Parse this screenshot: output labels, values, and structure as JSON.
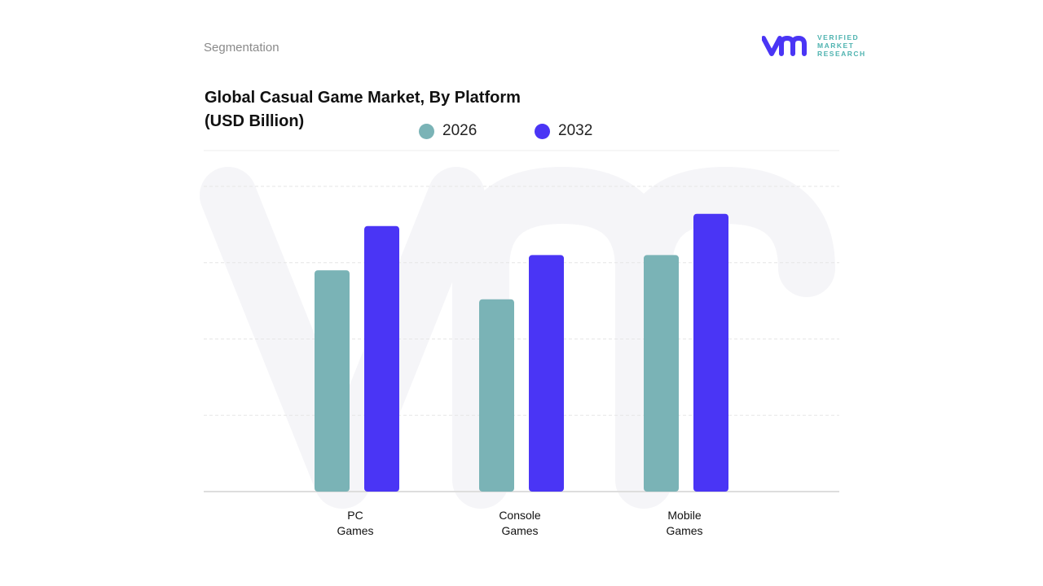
{
  "header": {
    "section": "Segmentation",
    "logo_text": [
      "VERIFIED",
      "MARKET",
      "RESEARCH"
    ]
  },
  "chart_data": {
    "type": "bar",
    "title": "Global Casual Game Market, By Platform",
    "subtitle": "(USD Billion)",
    "categories": [
      "PC Games",
      "Console Games",
      "Mobile Games"
    ],
    "category_lines": [
      [
        "PC",
        "Games"
      ],
      [
        "Console",
        "Games"
      ],
      [
        "Mobile",
        "Games"
      ]
    ],
    "series": [
      {
        "name": "2026",
        "color": "#7ab3b6",
        "values": [
          2.9,
          2.52,
          3.1
        ]
      },
      {
        "name": "2032",
        "color": "#4a35f5",
        "values": [
          3.48,
          3.1,
          3.64
        ]
      }
    ],
    "ylim": [
      0,
      4
    ],
    "grid": true,
    "legend": "top",
    "xlabel": "",
    "ylabel": ""
  }
}
